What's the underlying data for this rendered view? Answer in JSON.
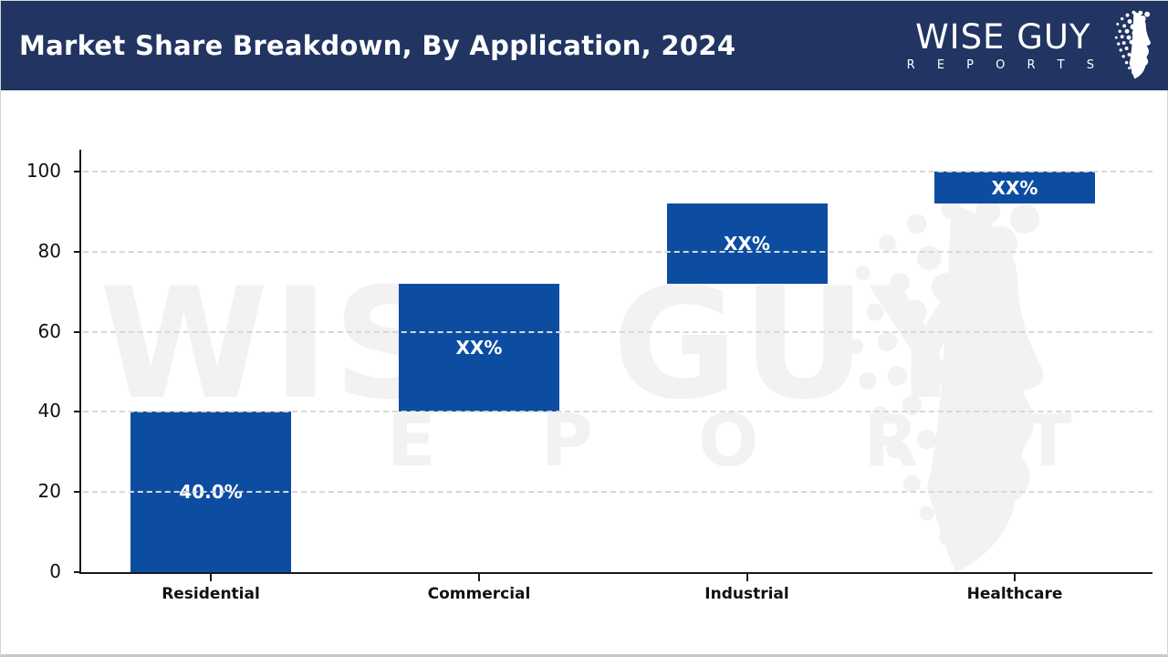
{
  "header": {
    "title": "Market Share Breakdown, By Application, 2024",
    "logo": {
      "brand_line1": "WISE GUY",
      "brand_line2": "R E P O R T S"
    }
  },
  "watermark": {
    "line1": "WISE GUY",
    "line2": "R E P O R T S"
  },
  "chart_data": {
    "type": "bar",
    "subtype": "waterfall-floating-bars",
    "title": "Market Share Breakdown, By Application, 2024",
    "categories": [
      "Residential",
      "Commercial",
      "Industrial",
      "Healthcare"
    ],
    "segments": [
      {
        "category": "Residential",
        "start": 0,
        "end": 40,
        "value": 40,
        "label": "40.0%"
      },
      {
        "category": "Commercial",
        "start": 40,
        "end": 72,
        "value": 32,
        "label": "XX%"
      },
      {
        "category": "Industrial",
        "start": 72,
        "end": 92,
        "value": 20,
        "label": "XX%"
      },
      {
        "category": "Healthcare",
        "start": 92,
        "end": 100,
        "value": 8,
        "label": "XX%"
      }
    ],
    "yticks": [
      0,
      20,
      40,
      60,
      80,
      100
    ],
    "ylim": [
      0,
      105
    ],
    "xlabel": "",
    "ylabel": "",
    "grid": "horizontal-dashed-over-bars",
    "legend": "none",
    "bar_color": "#0c4da2",
    "bar_label_color": "#ffffff"
  },
  "colors": {
    "header_bg": "#213462",
    "bar": "#0c4da2",
    "gridline": "#d8d8d8",
    "axis": "#1a1a1a",
    "watermark": "#f2f2f2",
    "page_bg": "#ffffff"
  }
}
